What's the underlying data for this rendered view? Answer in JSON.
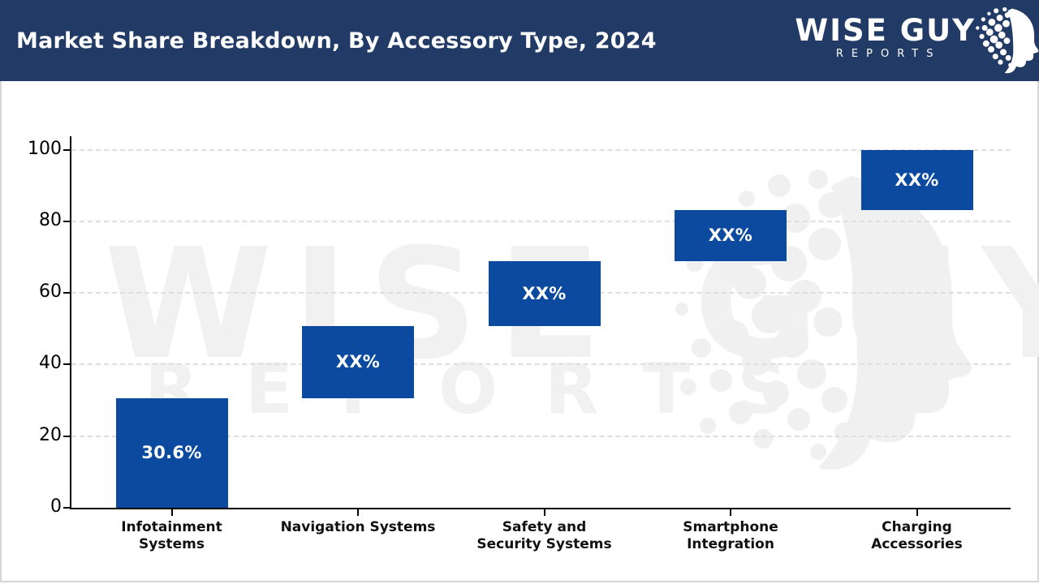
{
  "header": {
    "title": "Market Share Breakdown, By Accessory Type, 2024",
    "logo": {
      "line1": "WISE GUY",
      "line2": "REPORTS"
    }
  },
  "watermark": {
    "line1": "WISE GUY",
    "line2": "REPORTS"
  },
  "colors": {
    "header_bg": "#213a66",
    "bar": "#0b4a9e",
    "grid": "#dedede",
    "watermark": "#f1f1f1",
    "axis": "#000000"
  },
  "chart_data": {
    "type": "bar",
    "subtype": "waterfall",
    "title": "Market Share Breakdown, By Accessory Type, 2024",
    "categories": [
      [
        "Infotainment",
        "Systems"
      ],
      [
        "Navigation Systems"
      ],
      [
        "Safety and",
        "Security Systems"
      ],
      [
        "Smartphone",
        "Integration"
      ],
      [
        "Charging",
        "Accessories"
      ]
    ],
    "segments": [
      {
        "label": "30.6%",
        "start": 0,
        "end": 30.6
      },
      {
        "label": "XX%",
        "start": 30.6,
        "end": 50.8
      },
      {
        "label": "XX%",
        "start": 50.8,
        "end": 68.9
      },
      {
        "label": "XX%",
        "start": 68.9,
        "end": 83.2
      },
      {
        "label": "XX%",
        "start": 83.2,
        "end": 99.8
      }
    ],
    "yticks": [
      0,
      20,
      40,
      60,
      80,
      100
    ],
    "ylim": [
      0,
      104
    ],
    "xlabel": "",
    "ylabel": "",
    "grid": "horizontal-dashed",
    "legend": "none"
  }
}
